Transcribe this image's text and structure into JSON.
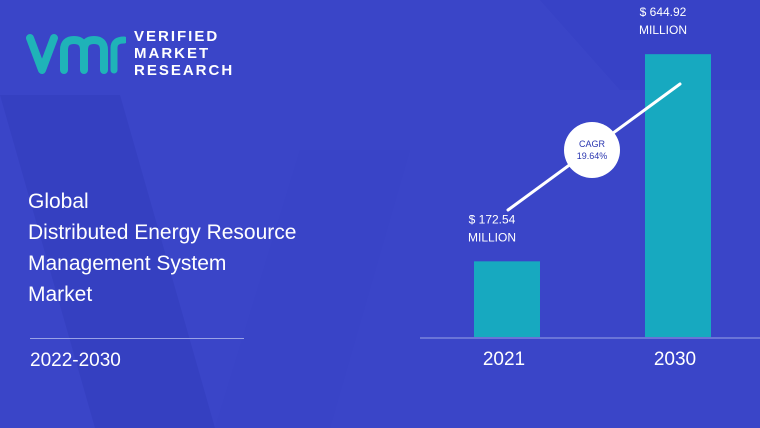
{
  "brand": {
    "line1": "VERIFIED",
    "line2": "MARKET",
    "line3": "RESEARCH"
  },
  "report": {
    "title_lines": [
      "Global",
      "Distributed Energy Resource",
      "Management System",
      "Market"
    ],
    "period": "2022-2030"
  },
  "colors": {
    "background": "#3a45c8",
    "bar": "#17a9c0",
    "logo_teal": "#1fb3b8"
  },
  "chart_data": {
    "type": "bar",
    "categories": [
      "2021",
      "2030"
    ],
    "values": [
      172.54,
      644.92
    ],
    "value_labels": [
      [
        "$ 172.54",
        "MILLION"
      ],
      [
        "$ 644.92",
        "MILLION"
      ]
    ],
    "title": "",
    "xlabel": "",
    "ylabel": "",
    "ylim": [
      0,
      700
    ],
    "annotation": {
      "line1": "CAGR",
      "line2": "19.64%"
    }
  }
}
